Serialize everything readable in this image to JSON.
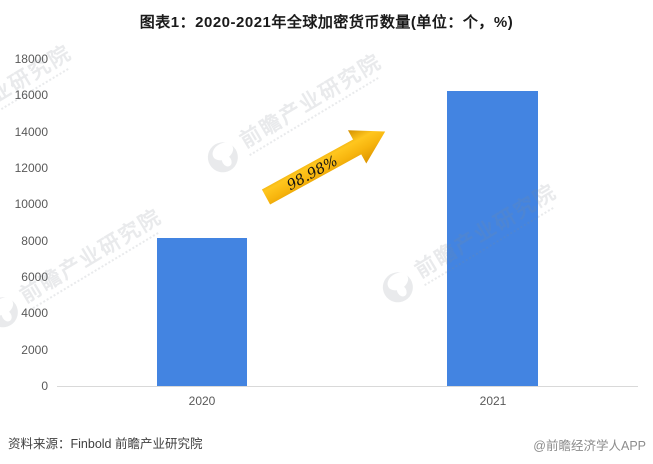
{
  "title": "图表1：2020-2021年全球加密货币数量(单位：个，%)",
  "chart_data": {
    "type": "bar",
    "categories": [
      "2020",
      "2021"
    ],
    "values": [
      8153,
      16223
    ],
    "growth_label": "98.98%",
    "title": "图表1：2020-2021年全球加密货币数量(单位：个，%)",
    "xlabel": "",
    "ylabel": "",
    "ylim": [
      0,
      18000
    ],
    "yticks": [
      "0",
      "2000",
      "4000",
      "6000",
      "8000",
      "10000",
      "12000",
      "14000",
      "16000",
      "18000"
    ],
    "grid": false,
    "legend": "none",
    "bar_color": "#4384e1",
    "arrow_color": "#f2ab0e"
  },
  "watermark": {
    "text": "前瞻产业研究院"
  },
  "footer": {
    "source": "资料来源：Finbold 前瞻产业研究院",
    "credit": "@前瞻经济学人APP"
  }
}
